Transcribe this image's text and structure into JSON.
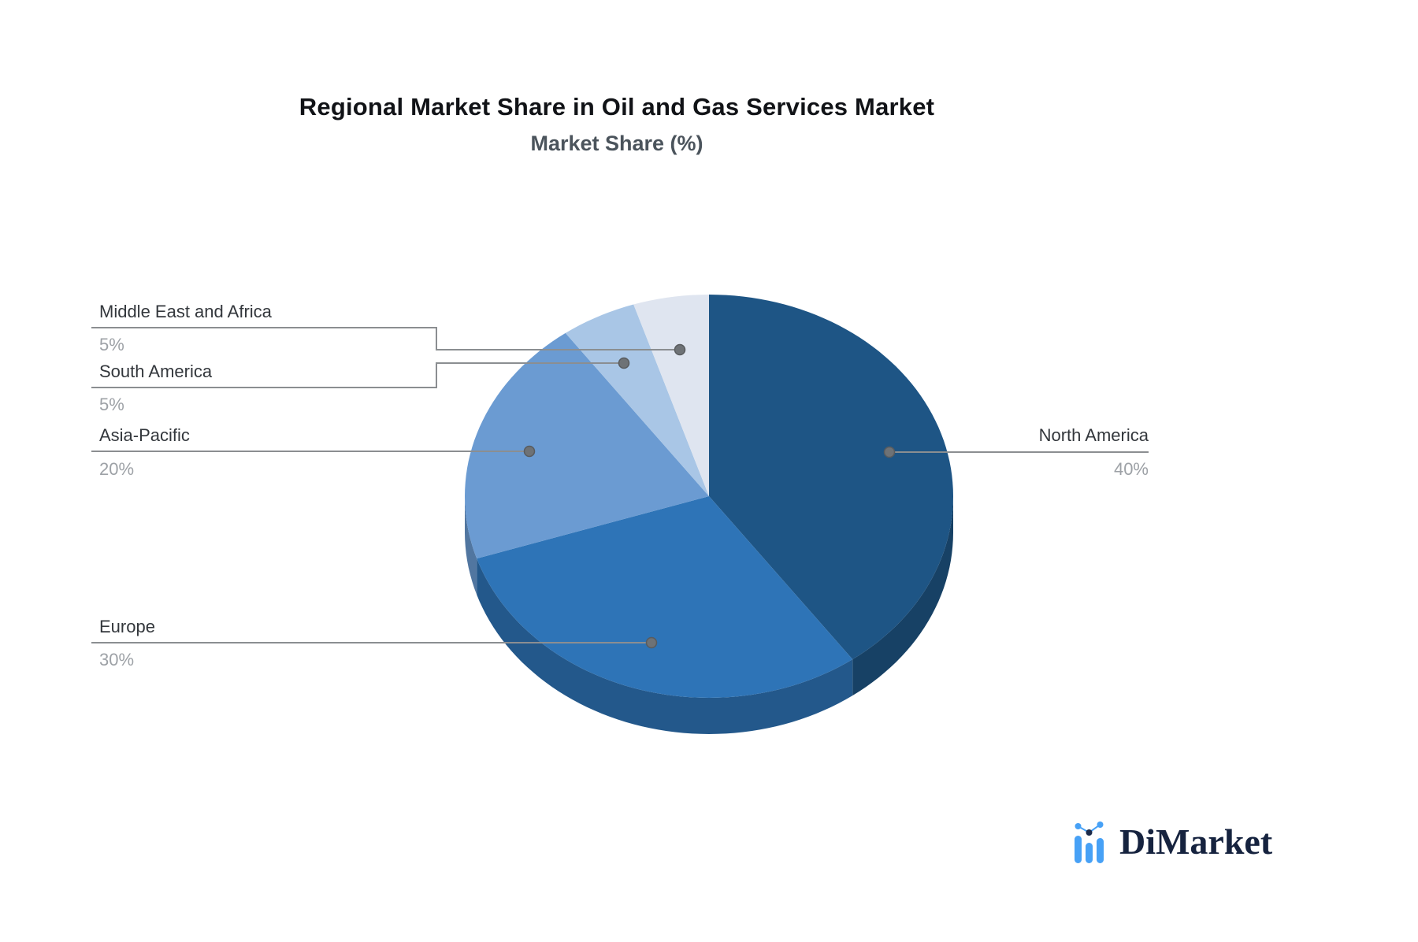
{
  "header": {
    "title": "Regional Market Share in Oil and Gas Services Market",
    "subtitle": "Market Share (%)"
  },
  "branding": {
    "logo_text": "DiMarket",
    "logo_icon": "bar-chart-trend-icon",
    "logo_text_color": "#16233f",
    "logo_accent_color": "#47a1f6"
  },
  "chart_data": {
    "type": "pie",
    "style": "3d-pie",
    "title": "Regional Market Share in Oil and Gas Services Market",
    "subtitle": "Market Share (%)",
    "unit": "%",
    "start_angle_deg": 0,
    "direction": "clockwise",
    "legend_position": "callout-labels",
    "grid": false,
    "background": "#ffffff",
    "leader_line_color": "#8b8e91",
    "leader_dot_color": "#6e7276",
    "label_text_color": "#33373c",
    "value_text_color": "#9da1a6",
    "slices": [
      {
        "label": "North America",
        "value": 40,
        "display": "40%",
        "color": "#1e5585",
        "label_side": "right"
      },
      {
        "label": "Europe",
        "value": 30,
        "display": "30%",
        "color": "#2e74b7",
        "label_side": "left"
      },
      {
        "label": "Asia-Pacific",
        "value": 20,
        "display": "20%",
        "color": "#6b9bd2",
        "label_side": "left"
      },
      {
        "label": "South America",
        "value": 5,
        "display": "5%",
        "color": "#a9c6e6",
        "label_side": "left"
      },
      {
        "label": "Middle East and Africa",
        "value": 5,
        "display": "5%",
        "color": "#dfe5f0",
        "label_side": "left"
      }
    ]
  }
}
